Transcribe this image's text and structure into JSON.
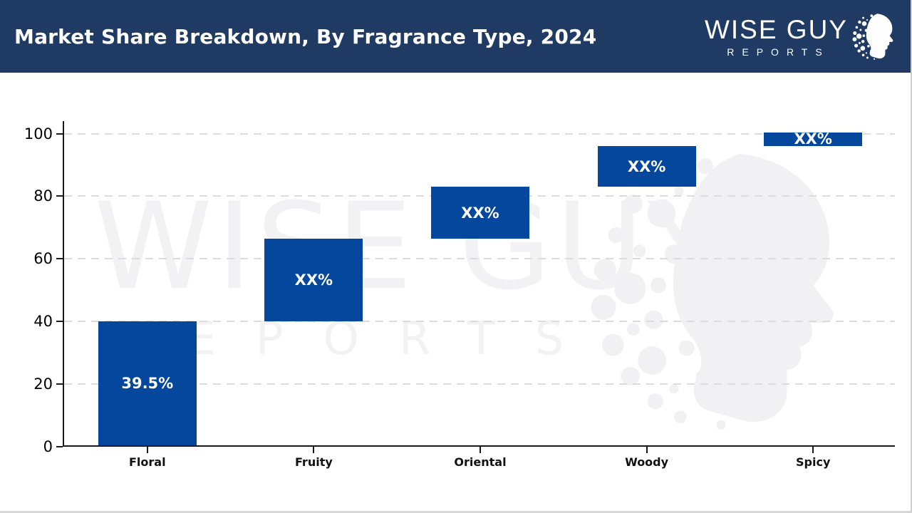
{
  "header": {
    "title": "Market Share Breakdown, By Fragrance Type, 2024",
    "bg_color": "#1f3a63",
    "text_color": "#ffffff",
    "logo": {
      "wordmark": "WISE GUY",
      "subtext": "REPORTS"
    }
  },
  "watermark": {
    "line1": "WISE GUY",
    "line2": "REPORTS"
  },
  "chart_data": {
    "type": "bar",
    "subtype": "waterfall",
    "title": "Market Share Breakdown, By Fragrance Type, 2024",
    "categories": [
      "Floral",
      "Fruity",
      "Oriental",
      "Woody",
      "Spicy"
    ],
    "segments": [
      {
        "category": "Floral",
        "start": 0,
        "end": 39.5,
        "label": "39.5%"
      },
      {
        "category": "Fruity",
        "start": 39.5,
        "end": 66,
        "label": "XX%"
      },
      {
        "category": "Oriental",
        "start": 66,
        "end": 82.5,
        "label": "XX%"
      },
      {
        "category": "Woody",
        "start": 82.5,
        "end": 95.5,
        "label": "XX%"
      },
      {
        "category": "Spicy",
        "start": 95.5,
        "end": 100,
        "label": "XX%"
      }
    ],
    "xlabel": "",
    "ylabel": "",
    "ylim": [
      0,
      104
    ],
    "yticks": [
      0,
      20,
      40,
      60,
      80,
      100
    ],
    "grid": "horizontal-dashed",
    "legend": "none",
    "bar_color": "#04479c",
    "bar_label_color": "#ffffff",
    "axis_color": "#1a1a1a",
    "grid_color": "#dcdcdc"
  }
}
